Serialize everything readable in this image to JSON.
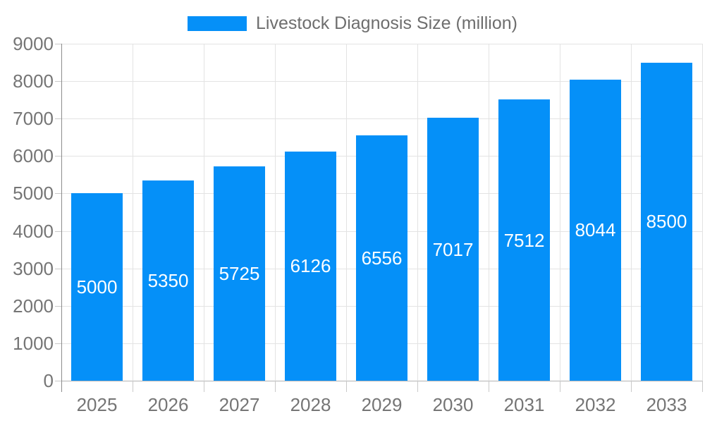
{
  "chart_data": {
    "type": "bar",
    "title": "Livestock Diagnosis Size (million)",
    "categories": [
      "2025",
      "2026",
      "2027",
      "2028",
      "2029",
      "2030",
      "2031",
      "2032",
      "2033"
    ],
    "values": [
      5000,
      5350,
      5725,
      6126,
      6556,
      7017,
      7512,
      8044,
      8500
    ],
    "xlabel": "",
    "ylabel": "",
    "ylim": [
      0,
      9000
    ],
    "yticks": [
      0,
      1000,
      2000,
      3000,
      4000,
      5000,
      6000,
      7000,
      8000,
      9000
    ],
    "grid": true,
    "legend_position": "top-center",
    "value_labels": "inside-middle",
    "colors": {
      "bar": "#0590f8",
      "bar_label": "#ffffff",
      "grid": "#e3e3e3",
      "baseline": "#b4b4b4",
      "axis_line": "#8c8c8c",
      "tick": "#c9c9c9",
      "axis_text": "#757575",
      "title_text": "#6e6e6e"
    }
  }
}
